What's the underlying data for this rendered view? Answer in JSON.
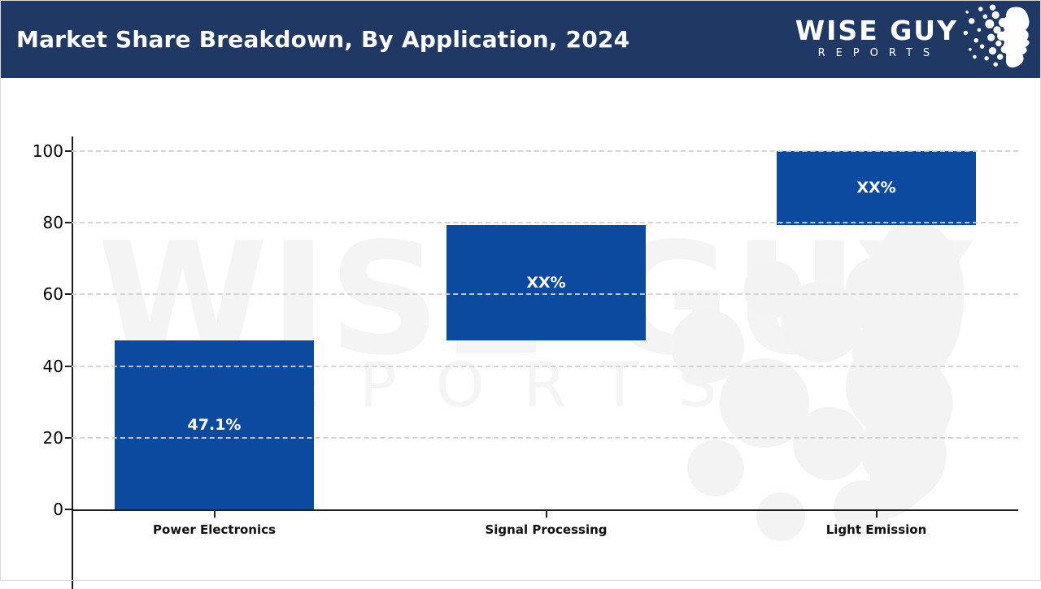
{
  "header": {
    "title": "Market Share Breakdown, By Application, 2024",
    "logo": {
      "line1": "WISE GUY",
      "line2": "REPORTS"
    }
  },
  "watermark": {
    "line1": "WISE GUY",
    "line2": "REPORTS"
  },
  "colors": {
    "header_bg": "#203864",
    "bar": "#0c4aa0",
    "bar_label": "#ffffff",
    "gridline": "#d8d8d8",
    "axis": "#1c1c1c",
    "watermark": "#f4f4f4"
  },
  "chart_data": {
    "type": "bar",
    "subtype": "waterfall",
    "title": "Market Share Breakdown, By Application, 2024",
    "categories": [
      "Power Electronics",
      "Signal Processing",
      "Light Emission"
    ],
    "segments": [
      {
        "category": "Power Electronics",
        "start": 0,
        "end": 47.1,
        "label": "47.1%"
      },
      {
        "category": "Signal Processing",
        "start": 47.1,
        "end": 79.4,
        "label": "XX%"
      },
      {
        "category": "Light Emission",
        "start": 79.4,
        "end": 100,
        "label": "XX%"
      }
    ],
    "yticks": [
      0,
      20,
      40,
      60,
      80,
      100
    ],
    "ylim": [
      0,
      104
    ],
    "xlabel": "",
    "ylabel": "",
    "grid": "dashed horizontal on top of bars",
    "legend": "none"
  }
}
